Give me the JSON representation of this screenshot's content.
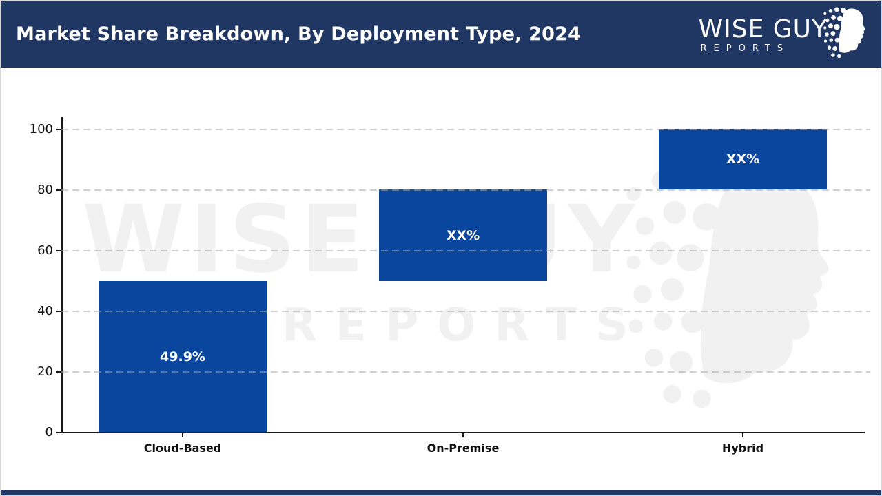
{
  "header": {
    "title": "Market Share Breakdown, By Deployment Type, 2024",
    "logo": {
      "brand": "WISE GUY",
      "sub": "REPORTS"
    }
  },
  "watermark": {
    "brand": "WISE GUY",
    "sub": "REPORTS"
  },
  "colors": {
    "header_bg": "#213763",
    "footer_bg": "#213763",
    "bar": "#0A459E",
    "bar_label": "#ffffff",
    "axis": "#1a1a1a",
    "tick_label": "#111111",
    "grid": "#d9d9d9",
    "watermark": "#f1f1f1"
  },
  "chart_data": {
    "type": "bar",
    "subtype": "floating-waterfall",
    "title": "Market Share Breakdown, By Deployment Type, 2024",
    "categories": [
      "Cloud-Based",
      "On-Premise",
      "Hybrid"
    ],
    "segments": [
      {
        "category": "Cloud-Based",
        "start": 0,
        "end": 49.9,
        "label": "49.9%"
      },
      {
        "category": "On-Premise",
        "start": 49.9,
        "end": 80.2,
        "label": "XX%"
      },
      {
        "category": "Hybrid",
        "start": 80.2,
        "end": 100.2,
        "label": "XX%"
      }
    ],
    "xlabel": "",
    "ylabel": "",
    "ylim": [
      0,
      104
    ],
    "yticks": [
      0,
      20,
      40,
      60,
      80,
      100
    ],
    "grid": true,
    "grid_style": "dashed",
    "legend": false,
    "note": "XX% value labels are masked placeholders shown in the image"
  }
}
